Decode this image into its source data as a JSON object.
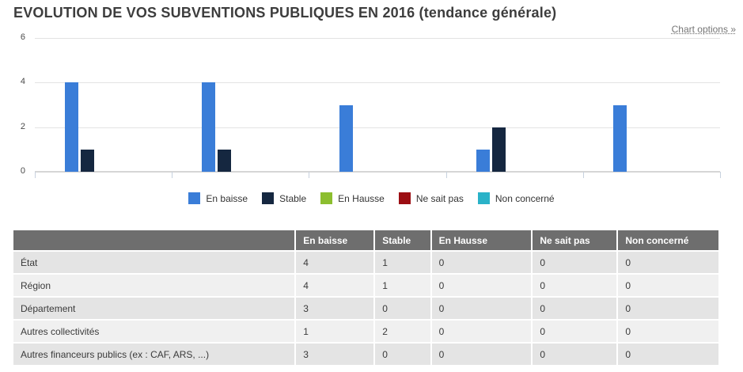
{
  "header": {
    "title": "EVOLUTION DE VOS SUBVENTIONS PUBLIQUES EN 2016 (tendance générale)",
    "chart_options_label": "Chart options »"
  },
  "colors": {
    "en_baisse": "#3a7dd8",
    "stable": "#152740",
    "en_hausse": "#8cbe2f",
    "ne_sait_pas": "#9c0e13",
    "non_concerne": "#2ab2c8",
    "table_header_bg": "#6e6e6e",
    "row_odd_bg": "#e4e4e4",
    "row_even_bg": "#f0f0f0",
    "gridline": "#e3e3e3",
    "axis_line": "#d6d6d6"
  },
  "chart_data": {
    "type": "bar",
    "title": "EVOLUTION DE VOS SUBVENTIONS PUBLIQUES EN 2016 (tendance générale)",
    "categories": [
      "État",
      "Région",
      "Département",
      "Autres collectivités",
      "Autres financeurs publics (ex : CAF, ARS, ...)"
    ],
    "series": [
      {
        "name": "En baisse",
        "color": "#3a7dd8",
        "values": [
          4,
          4,
          3,
          1,
          3
        ]
      },
      {
        "name": "Stable",
        "color": "#152740",
        "values": [
          1,
          1,
          0,
          2,
          0
        ]
      },
      {
        "name": "En Hausse",
        "color": "#8cbe2f",
        "values": [
          0,
          0,
          0,
          0,
          0
        ]
      },
      {
        "name": "Ne sait pas",
        "color": "#9c0e13",
        "values": [
          0,
          0,
          0,
          0,
          0
        ]
      },
      {
        "name": "Non concerné",
        "color": "#2ab2c8",
        "values": [
          0,
          0,
          0,
          0,
          0
        ]
      }
    ],
    "xlabel": "",
    "ylabel": "",
    "ylim": [
      0,
      6
    ],
    "yticks": [
      0,
      2,
      4,
      6
    ],
    "grid": true,
    "legend_position": "bottom",
    "x_tick_labels_visible": false
  },
  "table": {
    "columns": [
      "",
      "En baisse",
      "Stable",
      "En Hausse",
      "Ne sait pas",
      "Non concerné"
    ],
    "rows": [
      {
        "label": "État",
        "values": [
          "4",
          "1",
          "0",
          "0",
          "0"
        ]
      },
      {
        "label": "Région",
        "values": [
          "4",
          "1",
          "0",
          "0",
          "0"
        ]
      },
      {
        "label": "Département",
        "values": [
          "3",
          "0",
          "0",
          "0",
          "0"
        ]
      },
      {
        "label": "Autres collectivités",
        "values": [
          "1",
          "2",
          "0",
          "0",
          "0"
        ]
      },
      {
        "label": "Autres financeurs publics (ex : CAF, ARS, ...)",
        "values": [
          "3",
          "0",
          "0",
          "0",
          "0"
        ]
      }
    ]
  }
}
